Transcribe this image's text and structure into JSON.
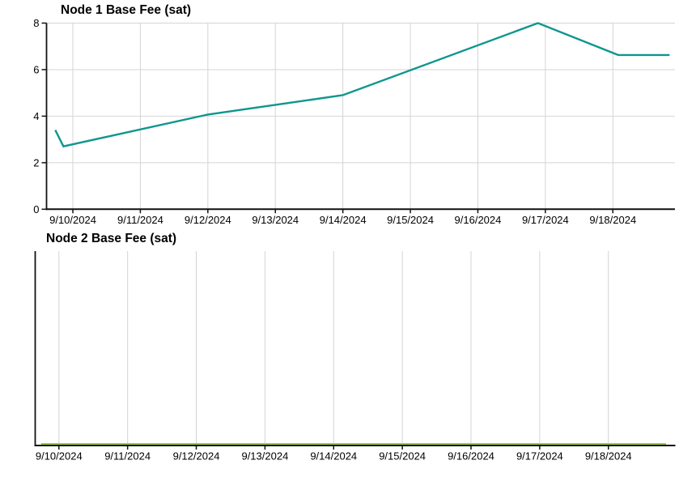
{
  "page": {
    "background_color": "#ffffff",
    "text_color": "#000000",
    "gridline_color": "#d4d4d4",
    "axis_color": "#111111"
  },
  "chart_data": [
    {
      "type": "line",
      "title": "Node 1 Base Fee (sat)",
      "xlabel": "",
      "ylabel": "",
      "ylim": [
        0,
        8
      ],
      "y_tick_values": [
        0,
        2,
        4,
        6,
        8
      ],
      "y_tick_labels": [
        "0",
        "2",
        "4",
        "6",
        "8"
      ],
      "x_tick_days": [
        0,
        1,
        2,
        3,
        4,
        5,
        6,
        7,
        8
      ],
      "x_tick_labels": [
        "9/10/2024",
        "9/11/2024",
        "9/12/2024",
        "9/13/2024",
        "9/14/2024",
        "9/15/2024",
        "9/16/2024",
        "9/17/2024",
        "9/18/2024"
      ],
      "grid": "both",
      "legend": "none",
      "line_color": "#0f968f",
      "series": [
        {
          "name": "Node 1 base fee",
          "x_unit": "days since 9/10/2024",
          "points": [
            [
              -0.26,
              3.4
            ],
            [
              -0.14,
              2.7
            ],
            [
              2.0,
              4.07
            ],
            [
              4.0,
              4.9
            ],
            [
              6.89,
              8.0
            ],
            [
              8.08,
              6.63
            ],
            [
              8.84,
              6.63
            ]
          ]
        }
      ]
    },
    {
      "type": "line",
      "title": "Node 2 Base Fee (sat)",
      "xlabel": "",
      "ylabel": "",
      "ylim": null,
      "y_tick_values": [],
      "y_tick_labels": [],
      "x_tick_days": [
        0,
        1,
        2,
        3,
        4,
        5,
        6,
        7,
        8
      ],
      "x_tick_labels": [
        "9/10/2024",
        "9/11/2024",
        "9/12/2024",
        "9/13/2024",
        "9/14/2024",
        "9/15/2024",
        "9/16/2024",
        "9/17/2024",
        "9/18/2024"
      ],
      "grid": "vertical-only",
      "legend": "none",
      "line_color": "#9acd32",
      "series": [
        {
          "name": "Node 2 base fee",
          "x_unit": "days since 9/10/2024",
          "render_note": "constant flat line at bottom of plot, no y-axis scale shown",
          "points": [
            [
              -0.26,
              0
            ],
            [
              8.84,
              0
            ]
          ]
        }
      ]
    }
  ]
}
